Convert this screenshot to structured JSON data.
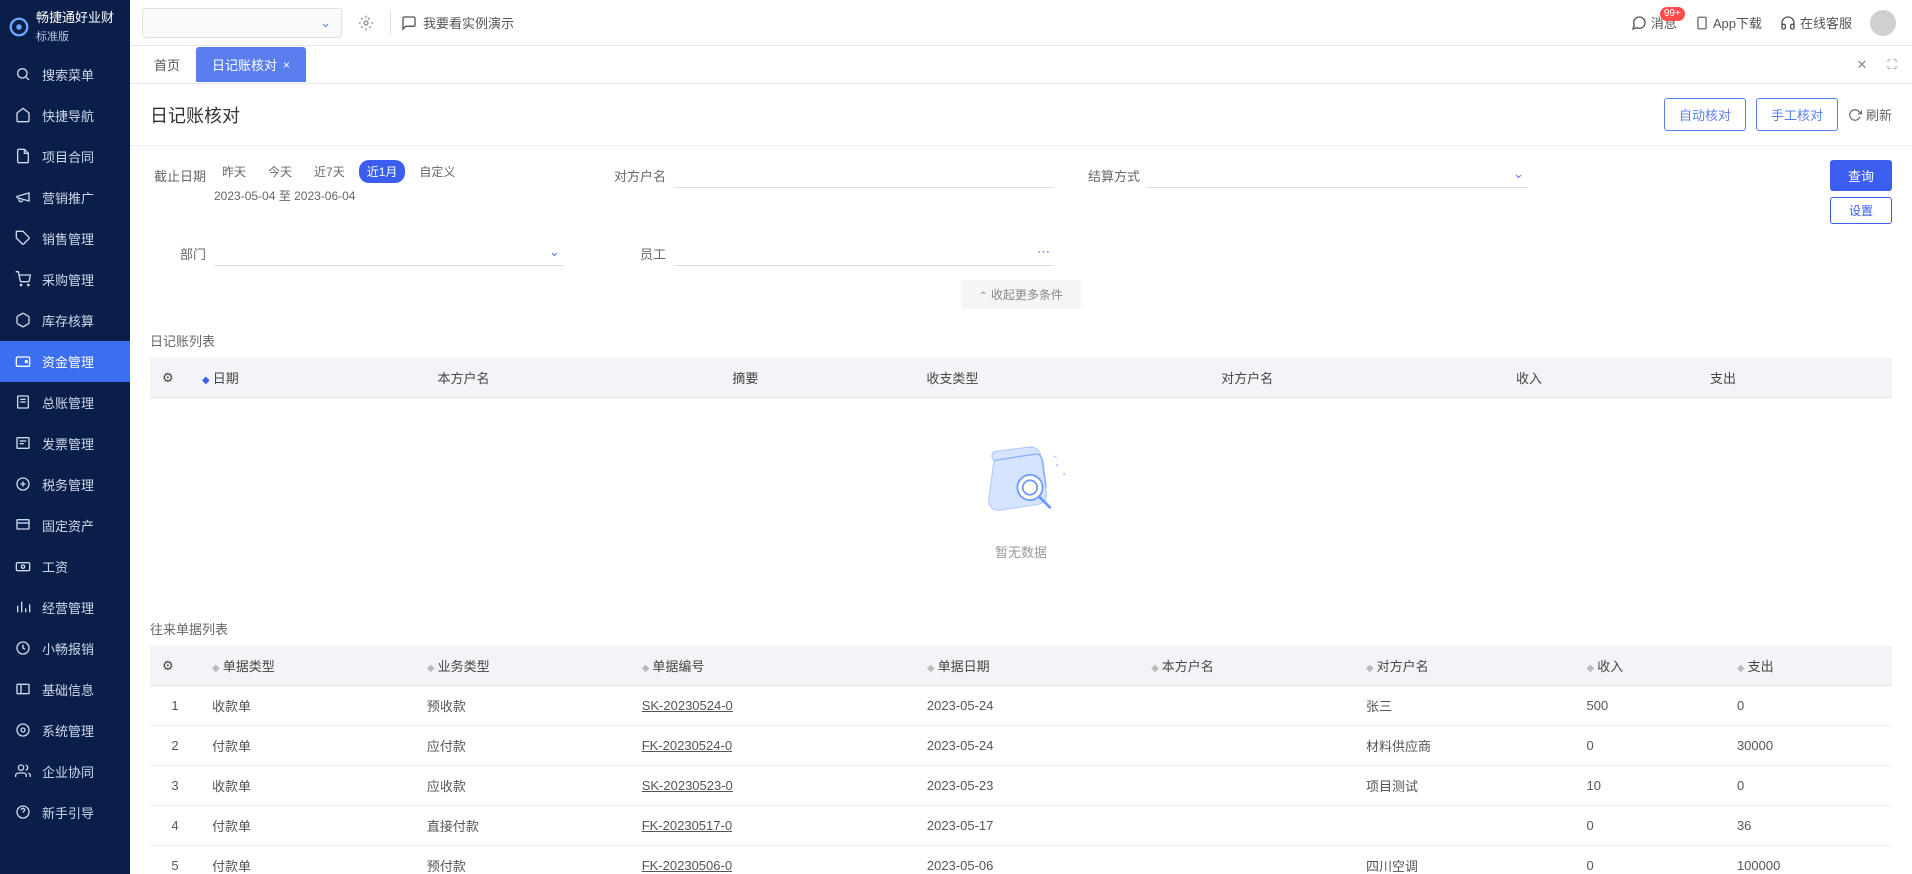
{
  "brand": {
    "name": "畅捷通好业财",
    "edition": "标准版"
  },
  "sidebar": {
    "items": [
      {
        "label": "搜索菜单",
        "icon": "search"
      },
      {
        "label": "快捷导航",
        "icon": "home"
      },
      {
        "label": "项目合同",
        "icon": "doc"
      },
      {
        "label": "营销推广",
        "icon": "megaphone"
      },
      {
        "label": "销售管理",
        "icon": "tag"
      },
      {
        "label": "采购管理",
        "icon": "cart"
      },
      {
        "label": "库存核算",
        "icon": "box"
      },
      {
        "label": "资金管理",
        "icon": "wallet",
        "active": true
      },
      {
        "label": "总账管理",
        "icon": "ledger"
      },
      {
        "label": "发票管理",
        "icon": "invoice"
      },
      {
        "label": "税务管理",
        "icon": "tax"
      },
      {
        "label": "固定资产",
        "icon": "asset"
      },
      {
        "label": "工资",
        "icon": "salary"
      },
      {
        "label": "经营管理",
        "icon": "biz"
      },
      {
        "label": "小畅报销",
        "icon": "expense"
      },
      {
        "label": "基础信息",
        "icon": "info"
      },
      {
        "label": "系统管理",
        "icon": "system"
      },
      {
        "label": "企业协同",
        "icon": "collab"
      },
      {
        "label": "新手引导",
        "icon": "guide"
      }
    ]
  },
  "topbar": {
    "org_placeholder": "",
    "demo_link": "我要看实例演示",
    "msg_label": "消息",
    "msg_badge": "99+",
    "app_label": "App下载",
    "service_label": "在线客服",
    "username": ""
  },
  "tabs": {
    "items": [
      {
        "label": "首页",
        "closable": false
      },
      {
        "label": "日记账核对",
        "closable": true,
        "active": true
      }
    ]
  },
  "page": {
    "title": "日记账核对",
    "auto_btn": "自动核对",
    "manual_btn": "手工核对",
    "refresh_btn": "刷新"
  },
  "filters": {
    "date_label": "截止日期",
    "shortcuts": [
      "昨天",
      "今天",
      "近7天",
      "近1月",
      "自定义"
    ],
    "active_shortcut": "近1月",
    "date_from": "2023-05-04",
    "date_sep": "至",
    "date_to": "2023-06-04",
    "party_label": "对方户名",
    "settle_label": "结算方式",
    "dept_label": "部门",
    "emp_label": "员工",
    "query_btn": "查询",
    "config_btn": "设置",
    "collapse": "收起更多条件"
  },
  "journal": {
    "title": "日记账列表",
    "columns": [
      "日期",
      "本方户名",
      "摘要",
      "收支类型",
      "对方户名",
      "收入",
      "支出"
    ],
    "empty": "暂无数据"
  },
  "bills": {
    "title": "往来单据列表",
    "columns": [
      "单据类型",
      "业务类型",
      "单据编号",
      "单据日期",
      "本方户名",
      "对方户名",
      "收入",
      "支出"
    ],
    "rows": [
      {
        "idx": "1",
        "doc_type": "收款单",
        "biz_type": "预收款",
        "doc_no": "SK-20230524-0",
        "doc_date": "2023-05-24",
        "own": "",
        "party": "张三",
        "income": "500",
        "expense": "0"
      },
      {
        "idx": "2",
        "doc_type": "付款单",
        "biz_type": "应付款",
        "doc_no": "FK-20230524-0",
        "doc_date": "2023-05-24",
        "own": "",
        "party": "材料供应商",
        "income": "0",
        "expense": "30000"
      },
      {
        "idx": "3",
        "doc_type": "收款单",
        "biz_type": "应收款",
        "doc_no": "SK-20230523-0",
        "doc_date": "2023-05-23",
        "own": "",
        "party": "项目测试",
        "income": "10",
        "expense": "0"
      },
      {
        "idx": "4",
        "doc_type": "付款单",
        "biz_type": "直接付款",
        "doc_no": "FK-20230517-0",
        "doc_date": "2023-05-17",
        "own": "",
        "party": "",
        "income": "0",
        "expense": "36"
      },
      {
        "idx": "5",
        "doc_type": "付款单",
        "biz_type": "预付款",
        "doc_no": "FK-20230506-0",
        "doc_date": "2023-05-06",
        "own": "",
        "party": "四川空调",
        "income": "0",
        "expense": "100000"
      }
    ]
  }
}
